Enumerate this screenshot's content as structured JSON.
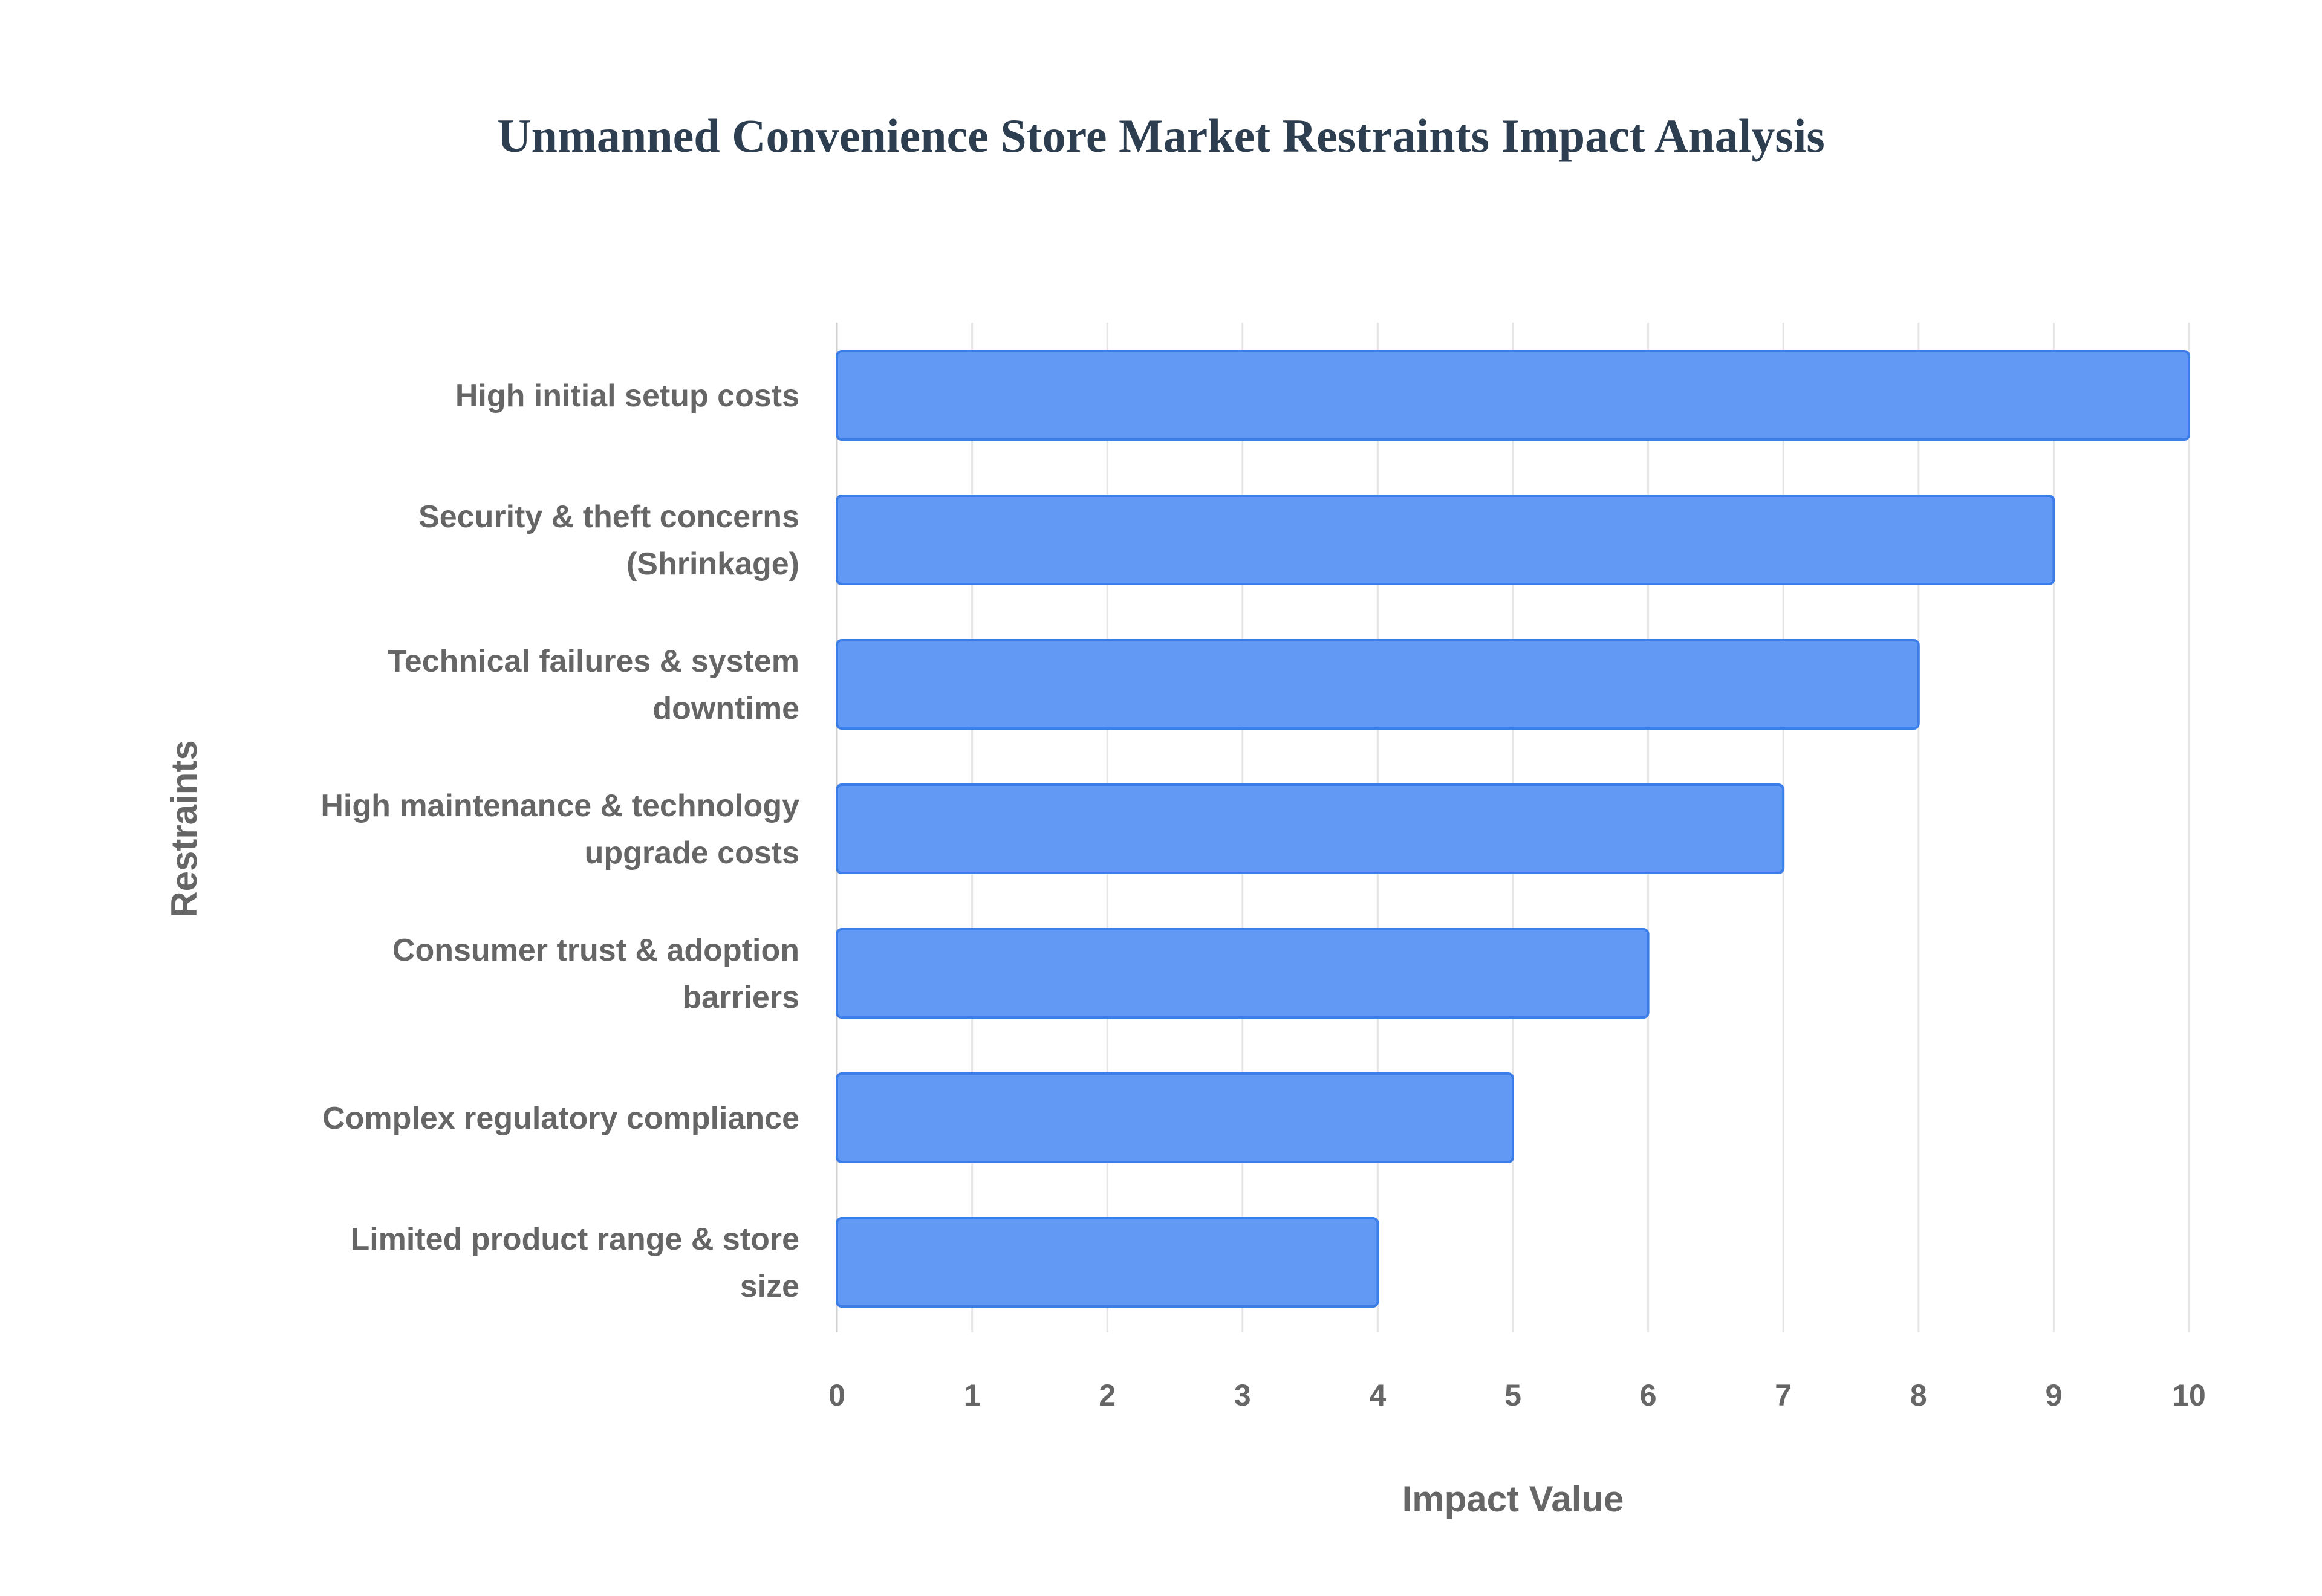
{
  "chart_data": {
    "type": "bar",
    "orientation": "horizontal",
    "title": "Unmanned Convenience Store Market Restraints Impact Analysis",
    "xlabel": "Impact Value",
    "ylabel": "Restraints",
    "xlim": [
      0,
      10
    ],
    "xticks": [
      "0",
      "1",
      "2",
      "3",
      "4",
      "5",
      "6",
      "7",
      "8",
      "9",
      "10"
    ],
    "grid": true,
    "categories": [
      [
        "High initial setup costs"
      ],
      [
        "Security & theft concerns",
        "(Shrinkage)"
      ],
      [
        "Technical failures & system",
        "downtime"
      ],
      [
        "High maintenance & technology",
        "upgrade costs"
      ],
      [
        "Consumer trust & adoption",
        "barriers"
      ],
      [
        "Complex regulatory compliance"
      ],
      [
        "Limited product range & store",
        "size"
      ]
    ],
    "values": [
      10,
      9,
      8,
      7,
      6,
      5,
      4
    ],
    "bar_color": "#6199f4",
    "bar_border": "#3b7de9"
  }
}
